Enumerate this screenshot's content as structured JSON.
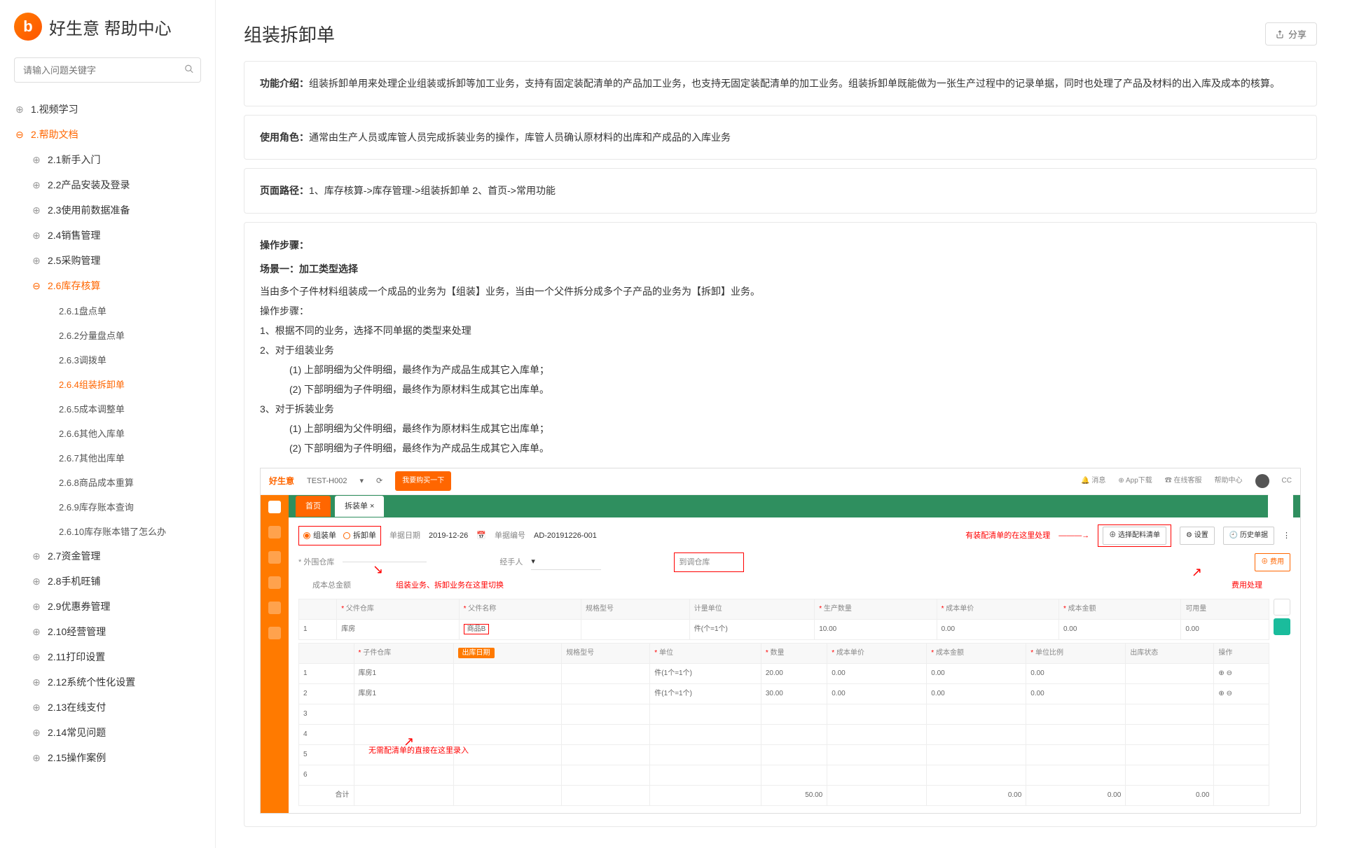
{
  "header": {
    "logo_glyph": "b",
    "logo_text": "好生意 帮助中心",
    "search_placeholder": "请输入问题关键字"
  },
  "nav": {
    "items": [
      {
        "label": "1.视频学习",
        "level": 1,
        "icon": "plus"
      },
      {
        "label": "2.帮助文档",
        "level": 1,
        "icon": "minus",
        "expanded": true
      },
      {
        "label": "2.1新手入门",
        "level": 2,
        "icon": "plus"
      },
      {
        "label": "2.2产品安装及登录",
        "level": 2,
        "icon": "plus"
      },
      {
        "label": "2.3使用前数据准备",
        "level": 2,
        "icon": "plus"
      },
      {
        "label": "2.4销售管理",
        "level": 2,
        "icon": "plus"
      },
      {
        "label": "2.5采购管理",
        "level": 2,
        "icon": "plus"
      },
      {
        "label": "2.6库存核算",
        "level": 2,
        "icon": "minus",
        "expanded": true
      },
      {
        "label": "2.6.1盘点单",
        "level": 3
      },
      {
        "label": "2.6.2分量盘点单",
        "level": 3
      },
      {
        "label": "2.6.3调拨单",
        "level": 3
      },
      {
        "label": "2.6.4组装拆卸单",
        "level": 3,
        "active": true
      },
      {
        "label": "2.6.5成本调整单",
        "level": 3
      },
      {
        "label": "2.6.6其他入库单",
        "level": 3
      },
      {
        "label": "2.6.7其他出库单",
        "level": 3
      },
      {
        "label": "2.6.8商品成本重算",
        "level": 3
      },
      {
        "label": "2.6.9库存账本查询",
        "level": 3
      },
      {
        "label": "2.6.10库存账本错了怎么办",
        "level": 3
      },
      {
        "label": "2.7资金管理",
        "level": 2,
        "icon": "plus"
      },
      {
        "label": "2.8手机旺铺",
        "level": 2,
        "icon": "plus"
      },
      {
        "label": "2.9优惠券管理",
        "level": 2,
        "icon": "plus"
      },
      {
        "label": "2.10经营管理",
        "level": 2,
        "icon": "plus"
      },
      {
        "label": "2.11打印设置",
        "level": 2,
        "icon": "plus"
      },
      {
        "label": "2.12系统个性化设置",
        "level": 2,
        "icon": "plus"
      },
      {
        "label": "2.13在线支付",
        "level": 2,
        "icon": "plus"
      },
      {
        "label": "2.14常见问题",
        "level": 2,
        "icon": "plus"
      },
      {
        "label": "2.15操作案例",
        "level": 2,
        "icon": "plus"
      }
    ]
  },
  "main": {
    "title": "组装拆卸单",
    "share": "分享",
    "card1_label": "功能介绍：",
    "card1_text": "组装拆卸单用来处理企业组装或拆卸等加工业务，支持有固定装配清单的产品加工业务，也支持无固定装配清单的加工业务。组装拆卸单既能做为一张生产过程中的记录单据，同时也处理了产品及材料的出入库及成本的核算。",
    "card2_label": "使用角色：",
    "card2_text": "通常由生产人员或库管人员完成拆装业务的操作，库管人员确认原材料的出库和产成品的入库业务",
    "card3_label": "页面路径：",
    "card3_text": "1、库存核算->库存管理->组装拆卸单  2、首页->常用功能",
    "steps_head": "操作步骤：",
    "scene_head": "场景一：加工类型选择",
    "scene_desc": "当由多个子件材料组装成一个成品的业务为【组装】业务，当由一个父件拆分成多个子产品的业务为【拆卸】业务。",
    "sub_head": "操作步骤：",
    "step1": "1、根据不同的业务，选择不同单据的类型来处理",
    "step2": "2、对于组装业务",
    "step2a": "(1)  上部明细为父件明细，最终作为产成品生成其它入库单；",
    "step2b": "(2)  下部明细为子件明细，最终作为原材料生成其它出库单。",
    "step3": "3、对于拆装业务",
    "step3a": "(1)  上部明细为父件明细，最终作为原材料生成其它出库单；",
    "step3b": "(2)  下部明细为子件明细，最终作为产成品生成其它入库单。"
  },
  "screenshot": {
    "topbar": {
      "brand": "好生意",
      "account": "TEST-H002",
      "try_btn": "我要购买一下",
      "msg": "消息",
      "app": "App下载",
      "service": "在线客服",
      "help": "帮助中心",
      "user": "CC"
    },
    "tabs": {
      "home": "首页",
      "current": "拆装单"
    },
    "form": {
      "radio1": "组装单",
      "radio2": "拆卸单",
      "date_label": "单据日期",
      "date_val": "2019-12-26",
      "doc_label": "单据编号",
      "doc_val": "AD-20191226-001",
      "anno1": "有装配清单的在这里处理",
      "btn_select": "选择配料清单",
      "btn_setting": "设置",
      "btn_history": "历史单据",
      "warehouse_label": "* 外围仓库",
      "handler_label": "经手人",
      "proj_label": "到调仓库",
      "fee_btn": "费用",
      "cost_label": "成本总金额",
      "anno2": "组装业务、拆卸业务在这里切换",
      "anno3": "费用处理",
      "anno4": "无需配清单的直接在这里录入"
    },
    "table1": {
      "headers": [
        "",
        "* 父件仓库",
        "* 父件名称",
        "规格型号",
        "计量单位",
        "* 生产数量",
        "* 成本单价",
        "* 成本金额",
        "可用量"
      ],
      "row": [
        "1",
        "库房",
        "商品B",
        "",
        "件(个=1个)",
        "10.00",
        "0.00",
        "0.00",
        "0.00"
      ]
    },
    "table2": {
      "headers": [
        "",
        "* 子件仓库",
        "出库日期",
        "规格型号",
        "* 单位",
        "* 数量",
        "* 成本单价",
        "* 成本金额",
        "* 单位比例",
        "出库状态",
        "操作"
      ],
      "rows": [
        [
          "1",
          "库房1",
          "",
          "",
          "件(1个=1个)",
          "20.00",
          "0.00",
          "0.00",
          "0.00",
          "",
          ""
        ],
        [
          "2",
          "库房1",
          "",
          "",
          "件(1个=1个)",
          "30.00",
          "0.00",
          "0.00",
          "0.00",
          "",
          ""
        ],
        [
          "3",
          "",
          "",
          "",
          "",
          "",
          "",
          "",
          "",
          "",
          ""
        ],
        [
          "4",
          "",
          "",
          "",
          "",
          "",
          "",
          "",
          "",
          "",
          ""
        ],
        [
          "5",
          "",
          "",
          "",
          "",
          "",
          "",
          "",
          "",
          "",
          ""
        ],
        [
          "6",
          "",
          "",
          "",
          "",
          "",
          "",
          "",
          "",
          "",
          ""
        ]
      ],
      "footer": [
        "合计",
        "",
        "",
        "",
        "",
        "50.00",
        "",
        "0.00",
        "0.00",
        "0.00",
        ""
      ]
    }
  }
}
